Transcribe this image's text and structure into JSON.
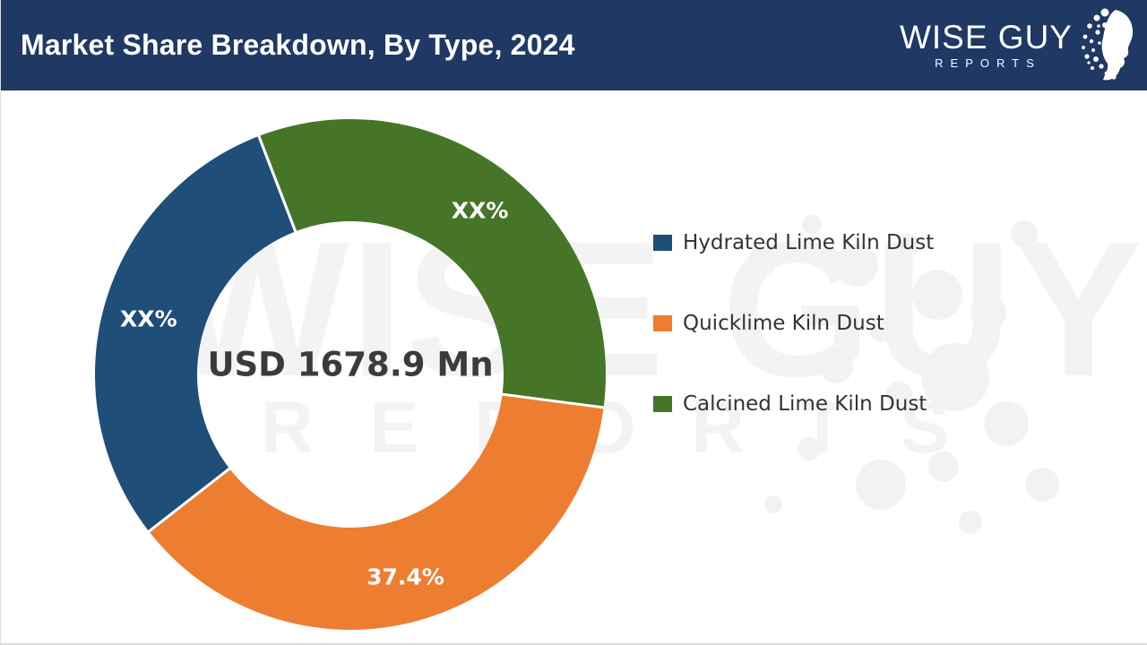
{
  "header": {
    "title": "Market Share Breakdown, By Type, 2024"
  },
  "logo": {
    "name": "WISE GUY",
    "subtitle": "REPORTS"
  },
  "watermark": {
    "line1": "WISE GUY",
    "line2": "REPORTS"
  },
  "chart_data": {
    "type": "pie",
    "subtype": "donut",
    "title": "Market Share Breakdown, By Type, 2024",
    "center_label": "USD 1678.9 Mn",
    "start_angle_deg": -21,
    "inner_radius_ratio": 0.6,
    "legend_position": "right",
    "segments": [
      {
        "name": "Calcined Lime Kiln Dust",
        "value_pct": 32.9,
        "label": "XX%",
        "color": "#467528"
      },
      {
        "name": "Quicklime Kiln Dust",
        "value_pct": 37.4,
        "label": "37.4%",
        "color": "#ED7D31"
      },
      {
        "name": "Hydrated Lime Kiln Dust",
        "value_pct": 29.7,
        "label": "XX%",
        "color": "#1F4E79"
      }
    ]
  },
  "legend": {
    "items": [
      {
        "label": "Hydrated Lime Kiln Dust",
        "color": "#1F4E79"
      },
      {
        "label": "Quicklime Kiln Dust",
        "color": "#ED7D31"
      },
      {
        "label": "Calcined Lime Kiln Dust",
        "color": "#467528"
      }
    ]
  },
  "colors": {
    "header_bg": "#1F3864",
    "segment_blue": "#1F4E79",
    "segment_orange": "#ED7D31",
    "segment_green": "#467528",
    "center_text": "#3B3B3B",
    "legend_text": "#333333",
    "watermark": "#F3F3F4",
    "border": "#D9D9D9"
  }
}
